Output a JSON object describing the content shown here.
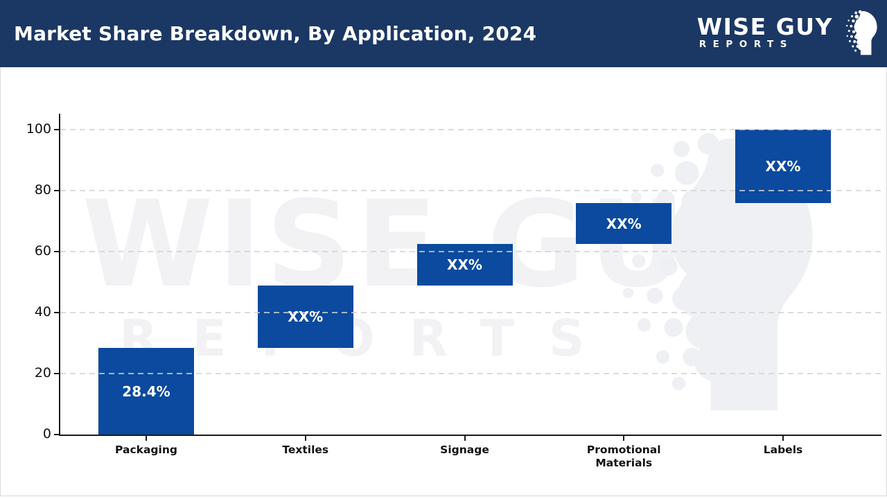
{
  "header": {
    "title": "Market Share Breakdown, By Application, 2024",
    "logo": {
      "line1": "WISE GUY",
      "line2": "REPORTS"
    }
  },
  "watermark": {
    "line1": "WISE GUY",
    "line2": "REPORTS"
  },
  "colors": {
    "header_bg": "#1b3764",
    "header_text": "#ffffff",
    "background": "#ffffff",
    "bar": "#0b4a9e",
    "bar_label": "#ffffff",
    "axis": "#1a1a1a",
    "tick_label": "#111111",
    "grid": "#d2d2d2",
    "watermark": "#f2f2f5",
    "watermark_face": "#eef0f3",
    "page_border": "#d9d9d9"
  },
  "chart_data": {
    "type": "bar",
    "subtype": "waterfall",
    "title": "Market Share Breakdown, By Application, 2024",
    "xlabel": "",
    "ylabel": "",
    "categories": [
      "Packaging",
      "Textiles",
      "Signage",
      "Promotional Materials",
      "Labels"
    ],
    "segments": [
      {
        "category": "Packaging",
        "start": 0,
        "end": 28.4,
        "label": "28.4%"
      },
      {
        "category": "Textiles",
        "start": 28.4,
        "end": 48.8,
        "label": "XX%"
      },
      {
        "category": "Signage",
        "start": 48.8,
        "end": 62.5,
        "label": "XX%"
      },
      {
        "category": "Promotional Materials",
        "start": 62.5,
        "end": 75.9,
        "label": "XX%"
      },
      {
        "category": "Labels",
        "start": 75.9,
        "end": 100,
        "label": "XX%"
      }
    ],
    "yticks": [
      0,
      20,
      40,
      60,
      80,
      100
    ],
    "ylim": [
      0,
      105
    ],
    "grid": "horizontal-dashed",
    "legend_position": "none"
  }
}
